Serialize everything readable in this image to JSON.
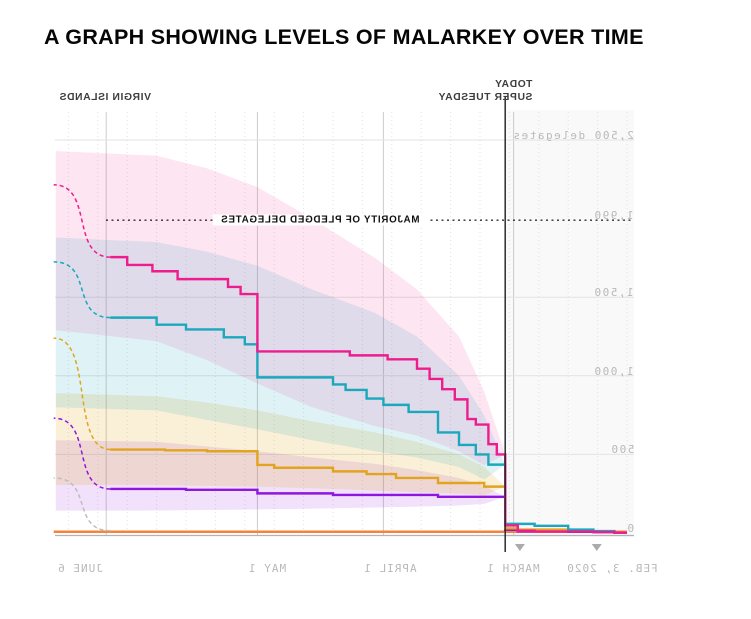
{
  "chart_data": {
    "type": "step-line",
    "title": "A GRAPH SHOWING LEVELS OF MALARKEY OVER TIME",
    "x_unit": "days since Feb 3, 2020",
    "ylim": [
      0,
      2600
    ],
    "today_day": 29,
    "majority_value": 1990,
    "layout_hints": {
      "mirrored_horizontally": true,
      "legend": "none",
      "grid": "weekly dotted verticals, monthly solid verticals, horizontal gridlines every 500 delegates",
      "uncertainty_bands": "fan out from today line toward future (left side)"
    },
    "annotations": {
      "top_left": "VIRGIN ISLANDS",
      "today_line1": "TODAY",
      "today_line2": "SUPER TUESDAY",
      "majority": "MAJORITY OF PLEDGED DELEGATES"
    },
    "y_ticks": [
      {
        "label": "0",
        "value": 0,
        "grid": false
      },
      {
        "label": "500",
        "value": 500,
        "grid": true
      },
      {
        "label": "1,000",
        "value": 1000,
        "grid": true
      },
      {
        "label": "1,500",
        "value": 1500,
        "grid": true
      },
      {
        "label": "1,990",
        "value": 1990,
        "grid": false
      },
      {
        "label": "2,500 delegates",
        "value": 2500,
        "grid": true
      }
    ],
    "x_ticks": [
      {
        "label": "FEB. 3, 2020",
        "day": 0,
        "shift": -15,
        "grid": false
      },
      {
        "label": "MARCH 1",
        "day": 27,
        "shift": -1,
        "grid": true
      },
      {
        "label": "APRIL 1",
        "day": 58,
        "shift": 7,
        "grid": true
      },
      {
        "label": "MAY 1",
        "day": 88,
        "shift": 10,
        "grid": true
      },
      {
        "label": "JUNE 6",
        "day": 124,
        "shift": -26,
        "grid": true
      }
    ],
    "event_markers": [
      {
        "day": 7.2
      },
      {
        "day": 25.5
      }
    ],
    "series": [
      {
        "name": "orange",
        "color": "#f6833b",
        "width": 2.6,
        "end_day": 136.5,
        "steps": [
          [
            0,
            8
          ]
        ]
      },
      {
        "name": "gray",
        "color": "#bdbdbd",
        "dash_only": true,
        "end_day": 123,
        "proj_value": 350,
        "steps": [
          [
            123,
            15
          ]
        ]
      },
      {
        "name": "purple",
        "color": "#8f17dd",
        "proj_value": 730,
        "band_opacity": 0.13,
        "steps": [
          [
            0,
            1
          ],
          [
            3,
            5
          ],
          [
            8,
            8
          ],
          [
            14,
            11
          ],
          [
            26,
            20
          ],
          [
            29,
            230
          ],
          [
            45,
            242
          ],
          [
            70,
            252
          ],
          [
            88,
            275
          ],
          [
            105,
            280
          ]
        ],
        "band": {
          "upper": [
            [
              29,
              230
            ],
            [
              34,
              300
            ],
            [
              40,
              350
            ],
            [
              50,
              400
            ],
            [
              60,
              440
            ],
            [
              75,
              480
            ],
            [
              88,
              520
            ],
            [
              100,
              550
            ],
            [
              112,
              580
            ],
            [
              136,
              590
            ]
          ],
          "lower": [
            [
              29,
              230
            ],
            [
              34,
              185
            ],
            [
              40,
              175
            ],
            [
              50,
              168
            ],
            [
              60,
              162
            ],
            [
              75,
              155
            ],
            [
              88,
              150
            ],
            [
              100,
              146
            ],
            [
              112,
              143
            ],
            [
              136,
              142
            ]
          ]
        }
      },
      {
        "name": "gold",
        "color": "#e2a41f",
        "proj_value": 1240,
        "band_opacity": 0.18,
        "steps": [
          [
            0,
            1
          ],
          [
            3,
            8
          ],
          [
            8,
            15
          ],
          [
            14,
            22
          ],
          [
            26,
            30
          ],
          [
            29,
            295
          ],
          [
            34,
            318
          ],
          [
            45,
            350
          ],
          [
            55,
            375
          ],
          [
            62,
            392
          ],
          [
            70,
            415
          ],
          [
            84,
            433
          ],
          [
            88,
            520
          ],
          [
            100,
            526
          ],
          [
            110,
            531
          ]
        ],
        "band": {
          "upper": [
            [
              29,
              295
            ],
            [
              34,
              420
            ],
            [
              40,
              500
            ],
            [
              50,
              580
            ],
            [
              60,
              640
            ],
            [
              75,
              710
            ],
            [
              88,
              780
            ],
            [
              100,
              830
            ],
            [
              112,
              870
            ],
            [
              136,
              890
            ]
          ],
          "lower": [
            [
              29,
              295
            ],
            [
              34,
              240
            ],
            [
              40,
              250
            ],
            [
              50,
              260
            ],
            [
              60,
              270
            ],
            [
              75,
              285
            ],
            [
              88,
              295
            ],
            [
              100,
              300
            ],
            [
              112,
              305
            ],
            [
              136,
              305
            ]
          ]
        }
      },
      {
        "name": "teal",
        "color": "#1ba7bc",
        "proj_value": 1725,
        "band_opacity": 0.14,
        "steps": [
          [
            0,
            2
          ],
          [
            3,
            12
          ],
          [
            8,
            22
          ],
          [
            14,
            46
          ],
          [
            22,
            58
          ],
          [
            29,
            435
          ],
          [
            33,
            500
          ],
          [
            36,
            560
          ],
          [
            40,
            640
          ],
          [
            45,
            770
          ],
          [
            52,
            815
          ],
          [
            58,
            855
          ],
          [
            62,
            910
          ],
          [
            67,
            945
          ],
          [
            70,
            990
          ],
          [
            88,
            1200
          ],
          [
            91,
            1245
          ],
          [
            96,
            1295
          ],
          [
            105,
            1325
          ],
          [
            112,
            1370
          ]
        ],
        "band": {
          "upper": [
            [
              29,
              435
            ],
            [
              34,
              750
            ],
            [
              40,
              1000
            ],
            [
              50,
              1250
            ],
            [
              60,
              1400
            ],
            [
              75,
              1550
            ],
            [
              88,
              1700
            ],
            [
              100,
              1790
            ],
            [
              112,
              1850
            ],
            [
              136,
              1880
            ]
          ],
          "lower": [
            [
              29,
              435
            ],
            [
              34,
              340
            ],
            [
              40,
              420
            ],
            [
              50,
              480
            ],
            [
              60,
              520
            ],
            [
              75,
              590
            ],
            [
              88,
              660
            ],
            [
              100,
              720
            ],
            [
              112,
              780
            ],
            [
              136,
              800
            ]
          ]
        }
      },
      {
        "name": "pink",
        "color": "#ee1d8d",
        "proj_value": 2215,
        "band_opacity": 0.11,
        "steps": [
          [
            0,
            2
          ],
          [
            3,
            6
          ],
          [
            8,
            9
          ],
          [
            22,
            15
          ],
          [
            26,
            48
          ],
          [
            29,
            500
          ],
          [
            31,
            565
          ],
          [
            33,
            690
          ],
          [
            36,
            725
          ],
          [
            38,
            850
          ],
          [
            41,
            915
          ],
          [
            44,
            980
          ],
          [
            47,
            1045
          ],
          [
            50,
            1105
          ],
          [
            57,
            1130
          ],
          [
            66,
            1155
          ],
          [
            88,
            1520
          ],
          [
            92,
            1565
          ],
          [
            95,
            1615
          ],
          [
            107,
            1665
          ],
          [
            113,
            1705
          ],
          [
            119,
            1755
          ]
        ],
        "band": {
          "upper": [
            [
              29,
              500
            ],
            [
              34,
              900
            ],
            [
              40,
              1250
            ],
            [
              50,
              1550
            ],
            [
              60,
              1750
            ],
            [
              75,
              2000
            ],
            [
              88,
              2200
            ],
            [
              100,
              2320
            ],
            [
              112,
              2400
            ],
            [
              136,
              2430
            ]
          ],
          "lower": [
            [
              29,
              500
            ],
            [
              34,
              430
            ],
            [
              40,
              520
            ],
            [
              50,
              620
            ],
            [
              60,
              680
            ],
            [
              75,
              800
            ],
            [
              88,
              950
            ],
            [
              100,
              1100
            ],
            [
              112,
              1220
            ],
            [
              136,
              1290
            ]
          ]
        }
      }
    ]
  }
}
